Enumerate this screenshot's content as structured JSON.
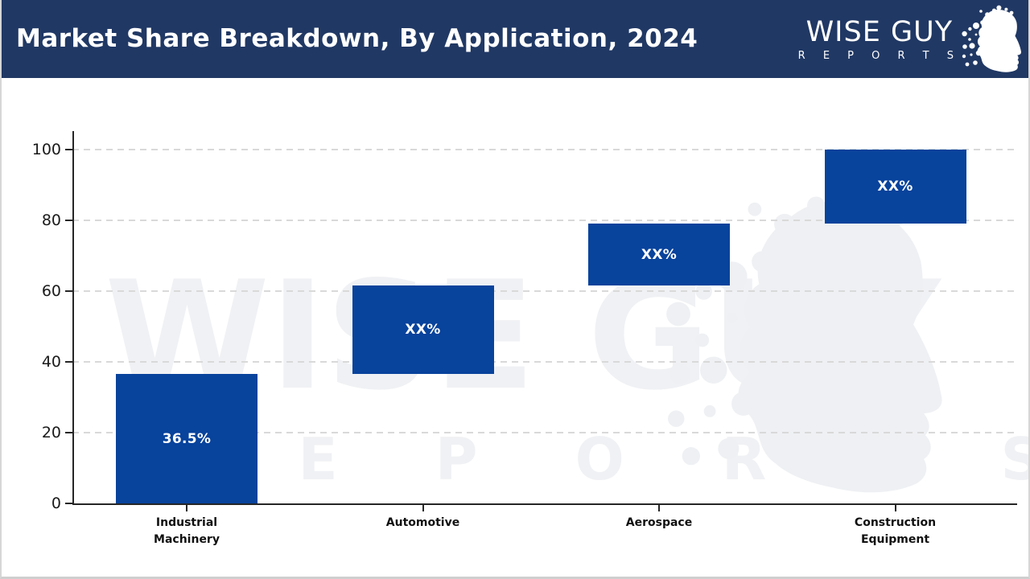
{
  "header": {
    "title": "Market Share Breakdown, By Application, 2024",
    "bg_color": "#203864",
    "logo_line1": "WISE GUY",
    "logo_line2": "R E P O R T S"
  },
  "watermark": {
    "line1": "WISE GUY",
    "line2": "R E P O R T S"
  },
  "chart_data": {
    "type": "bar",
    "subtype": "waterfall",
    "title": "Market Share Breakdown, By Application, 2024",
    "categories": [
      "Industrial\nMachinery",
      "Automotive",
      "Aerospace",
      "Construction\nEquipment"
    ],
    "segments": [
      {
        "category": "Industrial Machinery",
        "start": 0,
        "end": 36.5,
        "label": "36.5%"
      },
      {
        "category": "Automotive",
        "start": 36.5,
        "end": 61.5,
        "label": "XX%"
      },
      {
        "category": "Aerospace",
        "start": 61.5,
        "end": 79,
        "label": "XX%"
      },
      {
        "category": "Construction Equipment",
        "start": 79,
        "end": 100,
        "label": "XX%"
      }
    ],
    "ylim": [
      0,
      100
    ],
    "yticks": [
      0,
      20,
      40,
      60,
      80,
      100
    ],
    "grid": "horizontal-dashed",
    "legend": "none",
    "bar_color": "#08439c",
    "bar_label_color": "#ffffff",
    "axis_color": "#262626",
    "grid_color": "#d9d9d9",
    "tick_label_color": "#1a1a1a"
  }
}
